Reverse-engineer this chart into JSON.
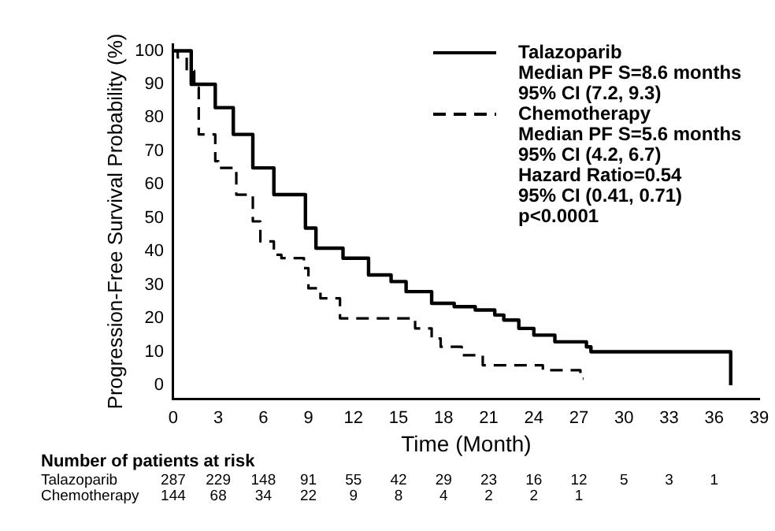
{
  "chart_data": {
    "type": "step",
    "xlabel": "Time (Month)",
    "ylabel": "Progression-Free Survival Probability (%)",
    "xlim": [
      0,
      39
    ],
    "xticks": [
      0,
      3,
      6,
      9,
      12,
      15,
      18,
      21,
      24,
      27,
      30,
      33,
      36,
      39
    ],
    "ylim": [
      -4,
      102
    ],
    "yticks": [
      0,
      10,
      20,
      30,
      40,
      50,
      60,
      70,
      80,
      90,
      100
    ],
    "legend": "top right",
    "grid": false,
    "series": [
      {
        "name": "Talazoparib",
        "color": "#000000",
        "line_style": "solid",
        "x": [
          0,
          1.2,
          2.8,
          4.0,
          5.3,
          6.7,
          8.8,
          9.5,
          11.3,
          13,
          14.5,
          15.5,
          17.2,
          18.7,
          20.1,
          21.4,
          22,
          23,
          24,
          25.4,
          27.5,
          27.8,
          37.1,
          37.1
        ],
        "values": [
          100,
          90,
          83,
          75,
          65,
          57,
          47,
          41,
          38,
          33,
          31,
          28,
          24.5,
          23.5,
          22.5,
          21,
          19.5,
          17,
          15,
          13,
          11.5,
          10,
          10,
          0
        ]
      },
      {
        "name": "Chemotherapy",
        "color": "#000000",
        "line_style": "dashed",
        "x": [
          0,
          0.3,
          0.9,
          1.4,
          1.7,
          2.8,
          3,
          4.2,
          5.3,
          5.8,
          6.7,
          7.2,
          8.7,
          9,
          9.8,
          11.1,
          16.1,
          17.2,
          17.8,
          19.2,
          20.6,
          24.6,
          27.1,
          27.3
        ],
        "values": [
          100,
          98,
          94,
          89,
          75,
          67,
          65,
          57,
          49,
          43,
          39,
          38,
          35,
          29,
          26,
          20,
          17,
          14,
          11.5,
          9,
          6,
          4.5,
          2,
          2
        ]
      }
    ],
    "annotations": [
      "Median PF S=8.6 months",
      "95% CI (7.2, 9.3)",
      "Median PF S=5.6 months",
      "95% CI (4.2, 6.7)",
      "Hazard Ratio=0.54",
      "95% CI (0.41, 0.71)",
      "p<0.0001",
      "Number of patients at risk",
      "Talazoparib",
      "287 229 148 91 55 42 29 23 16 12 5 3 1",
      "Chemotherapy",
      "144 68 34 22 9 8 4 2 2 1"
    ]
  }
}
